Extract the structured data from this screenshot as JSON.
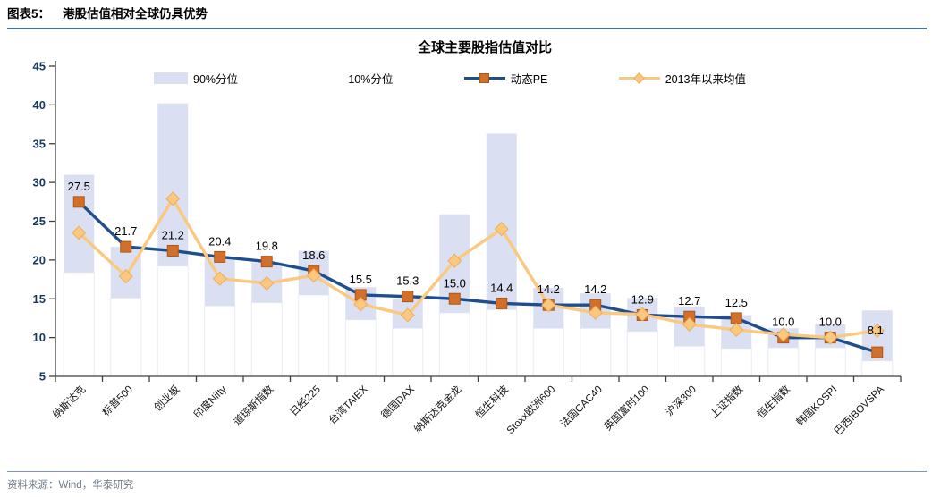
{
  "header": {
    "figure_label": "图表5：",
    "figure_title": "港股估值相对全球仍具优势"
  },
  "footer": {
    "source_text": "资料来源：Wind，华泰研究"
  },
  "colors": {
    "bar_fill": "#DAE0F2",
    "bar_faint_stroke": "#E9ECF5",
    "pe_line": "#1F4E8C",
    "pe_marker": "#D2702A",
    "pe_marker_stroke": "#AD5718",
    "mean_line": "#FAC87E",
    "mean_marker_stroke": "#EDAE5E",
    "axis": "#3F3F3F",
    "accent_rule": "#41719C"
  },
  "legend": {
    "items": [
      {
        "label": "90%分位",
        "swatch": "bar"
      },
      {
        "label": "10%分位",
        "swatch": "bar-invisible"
      },
      {
        "label": "动态PE",
        "swatch": "line-square"
      },
      {
        "label": "2013年以来均值",
        "swatch": "line-diamond"
      }
    ]
  },
  "chart_data": {
    "type": "bar",
    "subtype": "floating 10%-90% percentile range bars with two overlaid line series",
    "title": "全球主要股指估值对比",
    "categories": [
      "纳斯达克",
      "标普500",
      "创业板",
      "印度Nifty",
      "道琼斯指数",
      "日经225",
      "台湾TAIEX",
      "德国DAX",
      "纳斯达克金龙",
      "恒生科技",
      "Stoxx欧洲600",
      "法国CAC40",
      "英国富时100",
      "沪深300",
      "上证指数",
      "恒生指数",
      "韩国KOSPI",
      "巴西IBOVSPA"
    ],
    "series": [
      {
        "name": "90%分位",
        "role": "range_top",
        "values": [
          31.0,
          21.7,
          40.2,
          20.3,
          19.7,
          21.2,
          16.5,
          15.0,
          25.9,
          36.3,
          16.4,
          15.7,
          15.1,
          13.9,
          12.9,
          11.2,
          11.7,
          13.5
        ]
      },
      {
        "name": "10%分位",
        "role": "range_bottom",
        "values": [
          18.4,
          15.1,
          19.2,
          14.1,
          14.5,
          15.5,
          12.3,
          11.2,
          13.2,
          13.6,
          11.2,
          11.2,
          10.8,
          8.9,
          8.6,
          8.7,
          8.7,
          7.0
        ]
      },
      {
        "name": "动态PE",
        "role": "line",
        "marker": "square",
        "labeled": true,
        "values": [
          27.5,
          21.7,
          21.2,
          20.4,
          19.8,
          18.6,
          15.5,
          15.3,
          15.0,
          14.4,
          14.2,
          14.2,
          12.9,
          12.7,
          12.5,
          10.0,
          10.0,
          8.1
        ]
      },
      {
        "name": "2013年以来均值",
        "role": "line",
        "marker": "diamond",
        "labeled": false,
        "values": [
          23.5,
          17.9,
          27.9,
          17.6,
          17.0,
          18.0,
          14.3,
          12.9,
          19.9,
          24.0,
          14.2,
          13.2,
          13.0,
          11.7,
          11.0,
          10.4,
          10.0,
          10.9
        ]
      }
    ],
    "ylim": [
      5,
      45
    ],
    "ytick_step": 5,
    "grid": false,
    "legend_position": "top"
  }
}
